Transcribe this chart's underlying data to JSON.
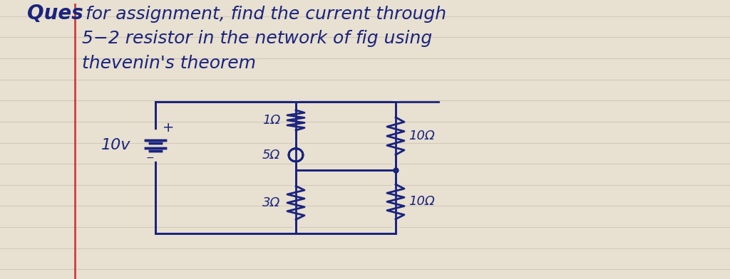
{
  "bg_color": "#e8e0d0",
  "line_color": "#1a237e",
  "text_color": "#1a237e",
  "notebook_lines_color": "#c8c0b0",
  "red_margin_color": "#cc2222",
  "title_lines": [
    "Ques for assignment, find the current through",
    "5−2 resistor in the network of fig using",
    "thevenin's theorem"
  ],
  "circuit": {
    "battery_label": "10v",
    "r1_label": "3Ω",
    "r2_label": "1Ω",
    "r3_label": "5Ω",
    "r4_label": "10Ω",
    "r5_label": "10Ω"
  }
}
